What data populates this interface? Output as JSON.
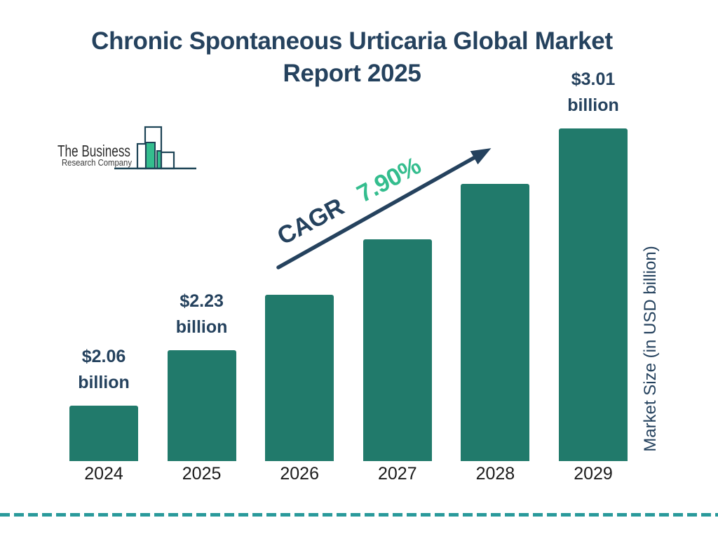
{
  "header": {
    "title_line1": "Chronic Spontaneous Urticaria Global Market",
    "title_line2": "Report 2025"
  },
  "logo": {
    "name_line1": "The Business",
    "name_line2": "Research Company"
  },
  "annotation": {
    "cagr_label": "CAGR",
    "cagr_value": "7.90%"
  },
  "axis": {
    "y_label": "Market Size (in USD billion)"
  },
  "colors": {
    "bar": "#217A6B",
    "navy": "#25425E",
    "green": "#34BD8E",
    "divider": "#2A9A9B"
  },
  "chart_data": {
    "type": "bar",
    "title": "Chronic Spontaneous Urticaria Global Market Report 2025",
    "categories": [
      "2024",
      "2025",
      "2026",
      "2027",
      "2028",
      "2029"
    ],
    "values_usd_billion": [
      2.06,
      2.23,
      null,
      null,
      null,
      3.01
    ],
    "bar_labels": [
      "$2.06 billion",
      "$2.23 billion",
      "",
      "",
      "",
      "$3.01 billion"
    ],
    "height_fracs": [
      0.1667,
      0.3333,
      0.5,
      0.6667,
      0.8333,
      1.0
    ],
    "cagr": "7.90%",
    "xlabel": "",
    "ylabel": "Market Size (in USD billion)",
    "legend": "none",
    "grid": false
  }
}
